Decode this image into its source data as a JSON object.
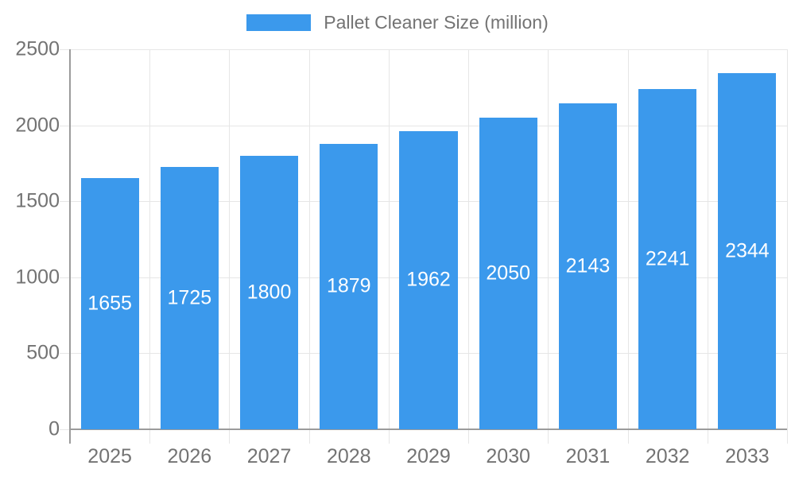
{
  "chart_data": {
    "type": "bar",
    "title": "",
    "legend": "Pallet Cleaner Size (million)",
    "legend_position": "top",
    "categories": [
      "2025",
      "2026",
      "2027",
      "2028",
      "2029",
      "2030",
      "2031",
      "2032",
      "2033"
    ],
    "values": [
      1655,
      1725,
      1800,
      1879,
      1962,
      2050,
      2143,
      2241,
      2344
    ],
    "ylim": [
      0,
      2500
    ],
    "yticks": [
      0,
      500,
      1000,
      1500,
      2000,
      2500
    ],
    "grid": true,
    "value_labels": "inside-center"
  },
  "colors": {
    "bar": "#3B99EC",
    "axis": "#9B9B9B",
    "grid": "#E6E6E6",
    "tick_text": "#737373",
    "value_text": "#FFFFFF"
  }
}
